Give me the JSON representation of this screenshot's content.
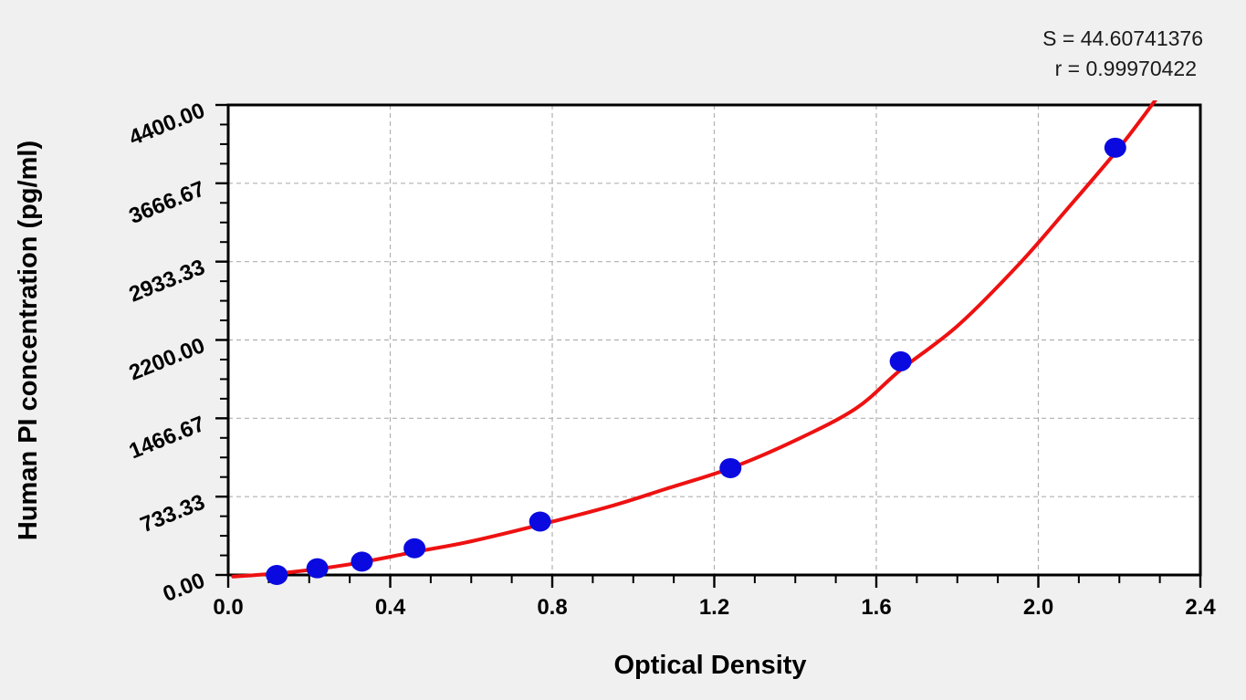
{
  "annotations": {
    "s_value": "S = 44.60741376",
    "r_value": "r = 0.99970422"
  },
  "chart_data": {
    "type": "scatter",
    "title": "",
    "xlabel": "Optical Density",
    "ylabel": "Human PI concentration (pg/ml)",
    "xlim": [
      0,
      2.4
    ],
    "ylim": [
      0,
      4400
    ],
    "x_major_ticks": [
      0,
      0.4,
      0.8,
      1.2,
      1.6,
      2.0,
      2.4
    ],
    "x_tick_labels": [
      "0.0",
      "0.4",
      "0.8",
      "1.2",
      "1.6",
      "2.0",
      "2.4"
    ],
    "x_minor_divisions": 4,
    "y_major_ticks": [
      0,
      733.33,
      1466.67,
      2200.0,
      2933.33,
      3666.67,
      4400.0
    ],
    "y_tick_labels": [
      "0.00",
      "733.33",
      "1466.67",
      "2200.00",
      "2933.33",
      "3666.67",
      "4400.00"
    ],
    "y_minor_divisions": 4,
    "grid": {
      "major": true,
      "minor": false,
      "style": "dashed",
      "legend": "none"
    },
    "stats": {
      "S": "44.60741376",
      "r": "0.99970422"
    },
    "series": [
      {
        "name": "standard-points",
        "type": "scatter",
        "marker": "circle",
        "points": [
          {
            "x": 0.12,
            "y": 0
          },
          {
            "x": 0.22,
            "y": 62.5
          },
          {
            "x": 0.33,
            "y": 125
          },
          {
            "x": 0.46,
            "y": 250
          },
          {
            "x": 0.77,
            "y": 500
          },
          {
            "x": 1.24,
            "y": 1000
          },
          {
            "x": 1.66,
            "y": 2000
          },
          {
            "x": 2.19,
            "y": 4000
          }
        ]
      },
      {
        "name": "fitted-curve",
        "type": "line",
        "samples": [
          [
            0.012,
            -15
          ],
          [
            0.15,
            25
          ],
          [
            0.3,
            100
          ],
          [
            0.46,
            215
          ],
          [
            0.6,
            315
          ],
          [
            0.77,
            470
          ],
          [
            0.95,
            650
          ],
          [
            1.08,
            805
          ],
          [
            1.24,
            1000
          ],
          [
            1.4,
            1260
          ],
          [
            1.55,
            1560
          ],
          [
            1.66,
            1920
          ],
          [
            1.8,
            2330
          ],
          [
            1.95,
            2900
          ],
          [
            2.07,
            3420
          ],
          [
            2.2,
            4000
          ],
          [
            2.29,
            4450
          ]
        ]
      }
    ]
  },
  "colors": {
    "background": "#f0f0f0",
    "plot_background": "#ffffff",
    "frame": "#000000",
    "grid": "#b0b0b0",
    "tick": "#000000",
    "point_fill": "#0a0ae0",
    "curve": "#ee1111",
    "text": "#000000"
  }
}
